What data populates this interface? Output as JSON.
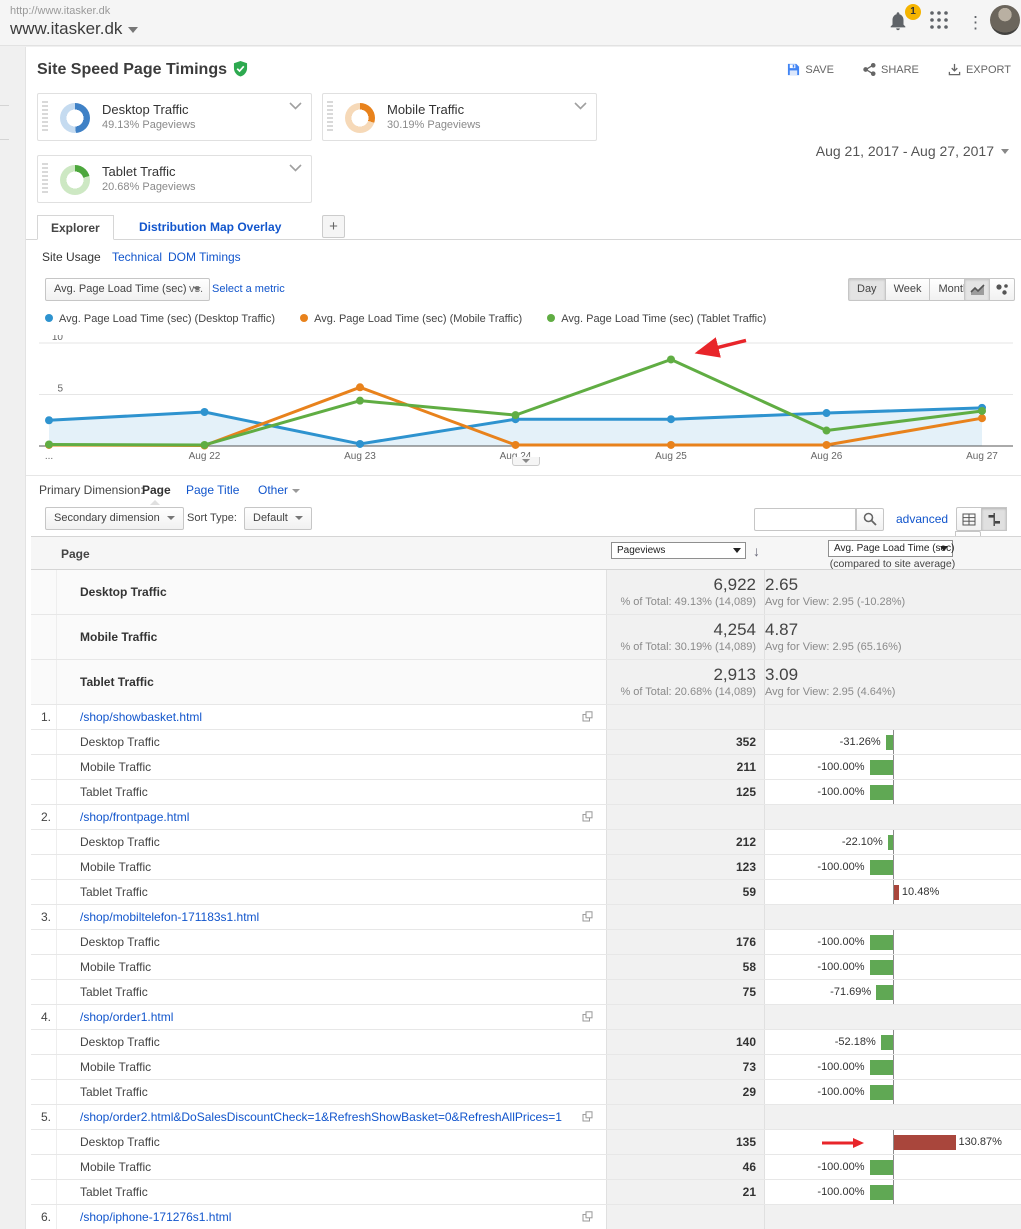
{
  "header": {
    "property_url": "http://www.itasker.dk",
    "property_name": "www.itasker.dk",
    "notification_count": "1"
  },
  "report": {
    "title": "Site Speed Page Timings",
    "actions": {
      "save": "SAVE",
      "share": "SHARE",
      "export": "EXPORT"
    },
    "date_range": "Aug 21, 2017 - Aug 27, 2017",
    "add_segment_label": "+"
  },
  "segments": [
    {
      "name": "Desktop Traffic",
      "detail": "49.13% Pageviews",
      "pct": 49.13,
      "color": "#3f81c6",
      "color_light": "#c5dbf0"
    },
    {
      "name": "Mobile Traffic",
      "detail": "30.19% Pageviews",
      "pct": 30.19,
      "color": "#e8821c",
      "color_light": "#f6d9b8"
    },
    {
      "name": "Tablet Traffic",
      "detail": "20.68% Pageviews",
      "pct": 20.68,
      "color": "#4ca73c",
      "color_light": "#cde8c3"
    }
  ],
  "tabs": {
    "items": [
      "Explorer",
      "Distribution",
      "Map Overlay"
    ],
    "active": "Explorer"
  },
  "subtabs": {
    "items": [
      "Site Usage",
      "Technical",
      "DOM Timings"
    ],
    "active": "Site Usage"
  },
  "controls": {
    "metric_dropdown": "Avg. Page Load Time (sec)",
    "vs_label": "vs.",
    "select_metric": "Select a metric",
    "granularity": [
      "Day",
      "Week",
      "Month"
    ],
    "granularity_active": "Day"
  },
  "chart_data": {
    "type": "line",
    "x": [
      "...",
      "Aug 22",
      "Aug 23",
      "Aug 24",
      "Aug 25",
      "Aug 26",
      "Aug 27"
    ],
    "ylim": [
      0,
      10
    ],
    "yticks": [
      5,
      10
    ],
    "grid": true,
    "legend_position": "top",
    "series": [
      {
        "name": "Avg. Page Load Time (sec) (Desktop Traffic)",
        "color": "#2e93cf",
        "area_fill": true,
        "values": [
          2.5,
          3.3,
          0.2,
          2.6,
          2.6,
          3.2,
          3.7
        ]
      },
      {
        "name": "Avg. Page Load Time (sec) (Mobile Traffic)",
        "color": "#e8821c",
        "area_fill": false,
        "values": [
          0.1,
          0.05,
          5.7,
          0.1,
          0.1,
          0.1,
          2.7
        ]
      },
      {
        "name": "Avg. Page Load Time (sec) (Tablet Traffic)",
        "color": "#60ad43",
        "area_fill": false,
        "values": [
          0.15,
          0.1,
          4.4,
          3.0,
          8.4,
          1.5,
          3.4
        ]
      }
    ],
    "annotation": {
      "type": "red-arrow",
      "color": "#e8252a",
      "series_index": 2,
      "point_index": 4
    }
  },
  "dimensions": {
    "label": "Primary Dimension:",
    "options": [
      "Page",
      "Page Title",
      "Other"
    ],
    "active": "Page"
  },
  "toolbar": {
    "secondary_dimension": "Secondary dimension",
    "sort_type_label": "Sort Type:",
    "sort_type_value": "Default",
    "search_value": "",
    "search_placeholder": "",
    "advanced": "advanced"
  },
  "table": {
    "header": {
      "page_col": "Page",
      "pageviews_select": "Pageviews",
      "loadtime_select": "Avg. Page Load Time (sec)",
      "loadtime_note": "(compared to site average)"
    },
    "bar_colors": {
      "negative": "#60a854",
      "positive": "#a9463c",
      "arrow": "#e8252a"
    },
    "summary_rows": [
      {
        "label": "Desktop Traffic",
        "pageviews": "6,922",
        "pageviews_note": "% of Total: 49.13% (14,089)",
        "loadtime": "2.65",
        "loadtime_note": "Avg for View: 2.95 (-10.28%)"
      },
      {
        "label": "Mobile Traffic",
        "pageviews": "4,254",
        "pageviews_note": "% of Total: 30.19% (14,089)",
        "loadtime": "4.87",
        "loadtime_note": "Avg for View: 2.95 (65.16%)"
      },
      {
        "label": "Tablet Traffic",
        "pageviews": "2,913",
        "pageviews_note": "% of Total: 20.68% (14,089)",
        "loadtime": "3.09",
        "loadtime_note": "Avg for View: 2.95 (4.64%)"
      }
    ],
    "groups": [
      {
        "index": "1.",
        "url": "/shop/showbasket.html",
        "rows": [
          {
            "label": "Desktop Traffic",
            "pageviews": "352",
            "pct": -31.26,
            "pct_label": "-31.26%"
          },
          {
            "label": "Mobile Traffic",
            "pageviews": "211",
            "pct": -100,
            "pct_label": "-100.00%"
          },
          {
            "label": "Tablet Traffic",
            "pageviews": "125",
            "pct": -100,
            "pct_label": "-100.00%"
          }
        ]
      },
      {
        "index": "2.",
        "url": "/shop/frontpage.html",
        "rows": [
          {
            "label": "Desktop Traffic",
            "pageviews": "212",
            "pct": -22.1,
            "pct_label": "-22.10%"
          },
          {
            "label": "Mobile Traffic",
            "pageviews": "123",
            "pct": -100,
            "pct_label": "-100.00%"
          },
          {
            "label": "Tablet Traffic",
            "pageviews": "59",
            "pct": 10.48,
            "pct_label": "10.48%"
          }
        ]
      },
      {
        "index": "3.",
        "url": "/shop/mobiltelefon-171183s1.html",
        "rows": [
          {
            "label": "Desktop Traffic",
            "pageviews": "176",
            "pct": -100,
            "pct_label": "-100.00%"
          },
          {
            "label": "Mobile Traffic",
            "pageviews": "58",
            "pct": -100,
            "pct_label": "-100.00%"
          },
          {
            "label": "Tablet Traffic",
            "pageviews": "75",
            "pct": -71.69,
            "pct_label": "-71.69%"
          }
        ]
      },
      {
        "index": "4.",
        "url": "/shop/order1.html",
        "rows": [
          {
            "label": "Desktop Traffic",
            "pageviews": "140",
            "pct": -52.18,
            "pct_label": "-52.18%"
          },
          {
            "label": "Mobile Traffic",
            "pageviews": "73",
            "pct": -100,
            "pct_label": "-100.00%"
          },
          {
            "label": "Tablet Traffic",
            "pageviews": "29",
            "pct": -100,
            "pct_label": "-100.00%"
          }
        ]
      },
      {
        "index": "5.",
        "url": "/shop/order2.html&DoSalesDiscountCheck=1&RefreshShowBasket=0&RefreshAllPrices=1",
        "rows": [
          {
            "label": "Desktop Traffic",
            "pageviews": "135",
            "pct": 130.87,
            "pct_label": "130.87%",
            "arrow": true
          },
          {
            "label": "Mobile Traffic",
            "pageviews": "46",
            "pct": -100,
            "pct_label": "-100.00%"
          },
          {
            "label": "Tablet Traffic",
            "pageviews": "21",
            "pct": -100,
            "pct_label": "-100.00%"
          }
        ]
      },
      {
        "index": "6.",
        "url": "/shop/iphone-171276s1.html",
        "rows": []
      }
    ]
  }
}
